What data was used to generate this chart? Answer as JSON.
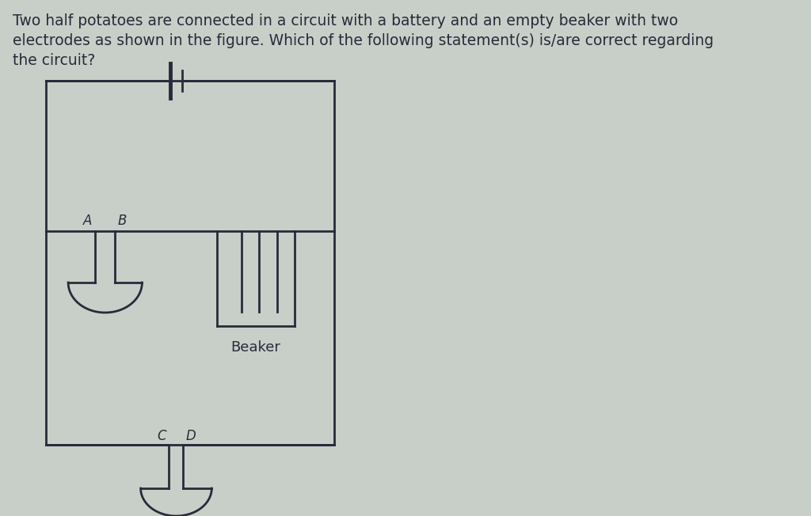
{
  "background_color": "#c8cfc8",
  "text_color": "#2a2a3a",
  "title_lines": [
    "Two half potatoes are connected in a circuit with a battery and an empty beaker with two",
    "electrodes as shown in the figure. Which of the following statement(s) is/are correct regarding",
    "the circuit?"
  ],
  "line_color": "#2a2a3a",
  "label_A": "A",
  "label_B": "B",
  "label_C": "C",
  "label_D": "D",
  "label_Beaker": "Beaker"
}
